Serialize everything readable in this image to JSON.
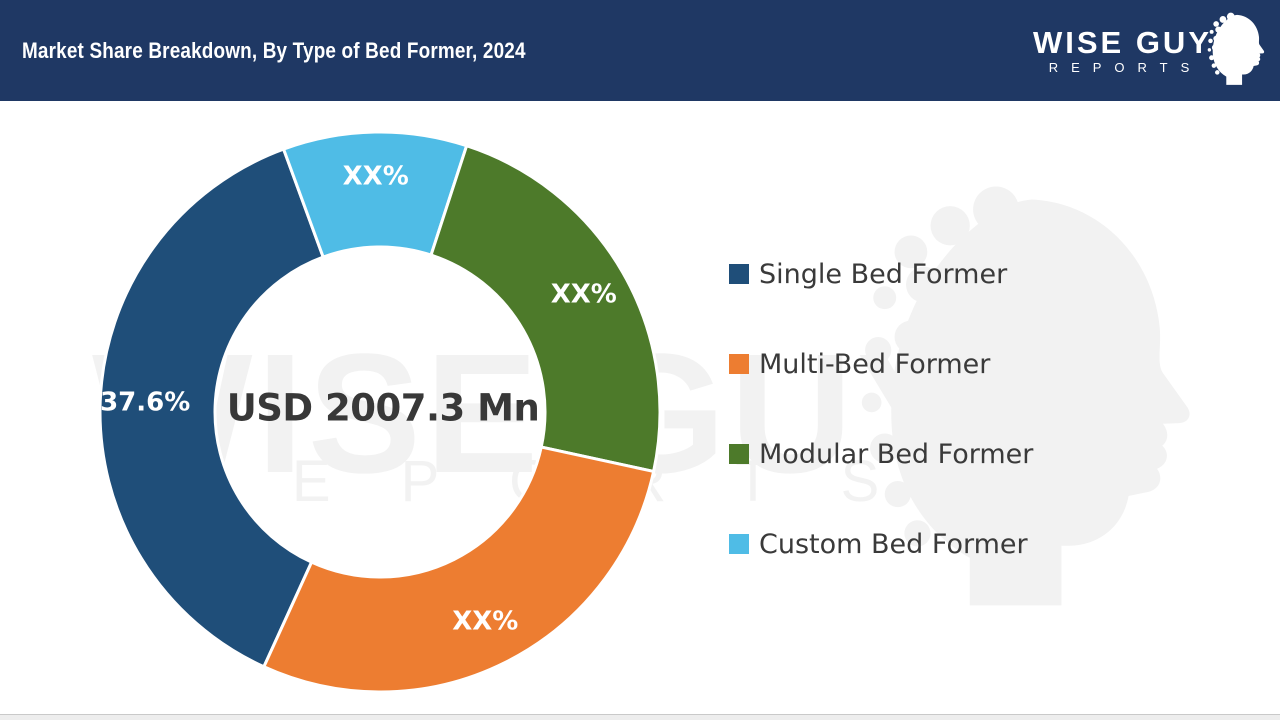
{
  "header": {
    "title": "Market Share Breakdown, By Type of Bed Former, 2024",
    "logo": {
      "line1": "WISE GUY",
      "line2": "REPORTS"
    }
  },
  "watermark": {
    "line1": "WISE GUY",
    "line2": "REPORTS"
  },
  "chart_data": {
    "type": "pie",
    "subtype": "donut",
    "title": "Market Share Breakdown, By Type of Bed Former, 2024",
    "center_label": "USD 2007.3 Mn",
    "start_angle_deg_clockwise_from_top": 204.5,
    "direction": "clockwise",
    "segments": [
      {
        "name": "Single Bed Former",
        "value_pct": 37.6,
        "displayed_label": "37.6%",
        "color": "#1F4E79"
      },
      {
        "name": "Custom Bed Former",
        "value_pct": 10.6,
        "displayed_label": "XX%",
        "color": "#4FBCE6"
      },
      {
        "name": "Modular Bed Former",
        "value_pct": 23.4,
        "displayed_label": "XX%",
        "color": "#4D7A2A"
      },
      {
        "name": "Multi-Bed Former",
        "value_pct": 28.4,
        "displayed_label": "XX%",
        "color": "#ED7D31"
      }
    ],
    "legend": {
      "position": "right",
      "items": [
        {
          "label": "Single Bed Former",
          "color": "#1F4E79"
        },
        {
          "label": "Multi-Bed Former",
          "color": "#ED7D31"
        },
        {
          "label": "Modular Bed Former",
          "color": "#4D7A2A"
        },
        {
          "label": "Custom Bed Former",
          "color": "#4FBCE6"
        }
      ]
    },
    "colors": {
      "header_bar": "#1F3864",
      "center_text": "#383838",
      "legend_text": "#3a3a3a",
      "watermark": "#f2f2f2"
    }
  }
}
